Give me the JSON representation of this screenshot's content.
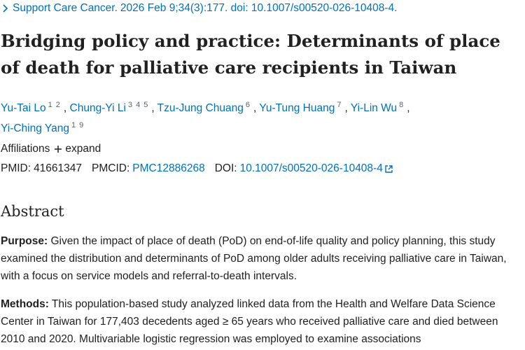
{
  "citation": {
    "journal": "Support Care Cancer.",
    "details": "2026 Feb 9;34(3):177. doi: 10.1007/s00520-026-10408-4."
  },
  "title": "Bridging policy and practice: Determinants of place of death for palliative care recipients in Taiwan",
  "authors": [
    {
      "name": "Yu-Tai Lo",
      "affiliations": [
        "1",
        "2"
      ]
    },
    {
      "name": "Chung-Yi Li",
      "affiliations": [
        "3",
        "4",
        "5"
      ]
    },
    {
      "name": "Tzu-Jung Chuang",
      "affiliations": [
        "6"
      ]
    },
    {
      "name": "Yu-Tung Huang",
      "affiliations": [
        "7"
      ]
    },
    {
      "name": "Yi-Lin Wu",
      "affiliations": [
        "8"
      ]
    },
    {
      "name": "Yi-Ching Yang",
      "affiliations": [
        "1",
        "9"
      ]
    }
  ],
  "author_separator": ",",
  "affiliations": {
    "label": "Affiliations",
    "toggle": "expand"
  },
  "identifiers": [
    {
      "label": "PMID:",
      "value": "41661347"
    },
    {
      "label": "PMCID:",
      "value": "PMC12886268"
    },
    {
      "label": "DOI:",
      "value": "10.1007/s00520-026-10408-4"
    }
  ],
  "abstract": {
    "heading": "Abstract",
    "sections": [
      {
        "label": "Purpose:",
        "text": "Given the impact of place of death (PoD) on end-of-life quality and policy planning, this study examined the distribution and determinants of PoD among older adults receiving palliative care in Taiwan, with a focus on service models and referral-to-death intervals."
      },
      {
        "label": "Methods:",
        "text": "This population-based study analyzed linked data from the Health and Welfare Data Science Center in Taiwan for 177,403 decedents aged ≥ 65 years who received palliative care and died between 2010 and 2020. Multivariable logistic regression was employed to examine associations"
      }
    ]
  }
}
